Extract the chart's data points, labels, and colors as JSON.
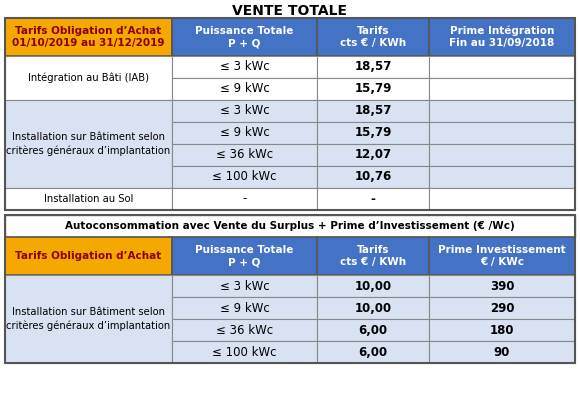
{
  "title1": "VENTE TOTALE",
  "title2": "Autoconsommation avec Vente du Surplus + Prime d’Investissement (€ /Wc)",
  "bg_color": "#ffffff",
  "table1": {
    "header_col1_text": "Tarifs Obligation d’Achat\n01/10/2019 au 31/12/2019",
    "header_col1_bg": "#F5A800",
    "header_col1_fg": "#8B0000",
    "header_cols_bg": "#4472C4",
    "header_cols_fg": "#ffffff",
    "col2_header": "Puissance Totale\nP + Q",
    "col3_header": "Tarifs\ncts € / KWh",
    "col4_header": "Prime Intégration\nFin au 31/09/2018",
    "row_bg_light": "#D9E2F3",
    "row_bg_white": "#ffffff",
    "rows": [
      {
        "label": "Intégration au Bâti (IAB)",
        "span": 2,
        "bg": "#ffffff",
        "subrows": [
          {
            "puissance": "≤ 3 kWc",
            "tarif": "18,57",
            "prime": ""
          },
          {
            "puissance": "≤ 9 kWc",
            "tarif": "15,79",
            "prime": ""
          }
        ]
      },
      {
        "label": "Installation sur Bâtiment selon\ncritères généraux d’implantation",
        "span": 4,
        "bg": "#D9E2F3",
        "subrows": [
          {
            "puissance": "≤ 3 kWc",
            "tarif": "18,57",
            "prime": ""
          },
          {
            "puissance": "≤ 9 kWc",
            "tarif": "15,79",
            "prime": ""
          },
          {
            "puissance": "≤ 36 kWc",
            "tarif": "12,07",
            "prime": ""
          },
          {
            "puissance": "≤ 100 kWc",
            "tarif": "10,76",
            "prime": ""
          }
        ]
      },
      {
        "label": "Installation au Sol",
        "span": 1,
        "bg": "#ffffff",
        "subrows": [
          {
            "puissance": "-",
            "tarif": "-",
            "prime": ""
          }
        ]
      }
    ]
  },
  "table2": {
    "header_col1_text": "Tarifs Obligation d’Achat",
    "header_col1_bg": "#F5A800",
    "header_col1_fg": "#8B0000",
    "header_cols_bg": "#4472C4",
    "header_cols_fg": "#ffffff",
    "col2_header": "Puissance Totale\nP + Q",
    "col3_header": "Tarifs\ncts € / KWh",
    "col4_header": "Prime Investissement\n€ / KWc",
    "row_bg_light": "#D9E2F3",
    "row_bg_white": "#ffffff",
    "rows": [
      {
        "label": "Installation sur Bâtiment selon\ncritères généraux d’implantation",
        "span": 4,
        "bg": "#D9E2F3",
        "subrows": [
          {
            "puissance": "≤ 3 kWc",
            "tarif": "10,00",
            "prime": "390"
          },
          {
            "puissance": "≤ 9 kWc",
            "tarif": "10,00",
            "prime": "290"
          },
          {
            "puissance": "≤ 36 kWc",
            "tarif": "6,00",
            "prime": "180"
          },
          {
            "puissance": "≤ 100 kWc",
            "tarif": "6,00",
            "prime": "90"
          }
        ]
      }
    ]
  }
}
